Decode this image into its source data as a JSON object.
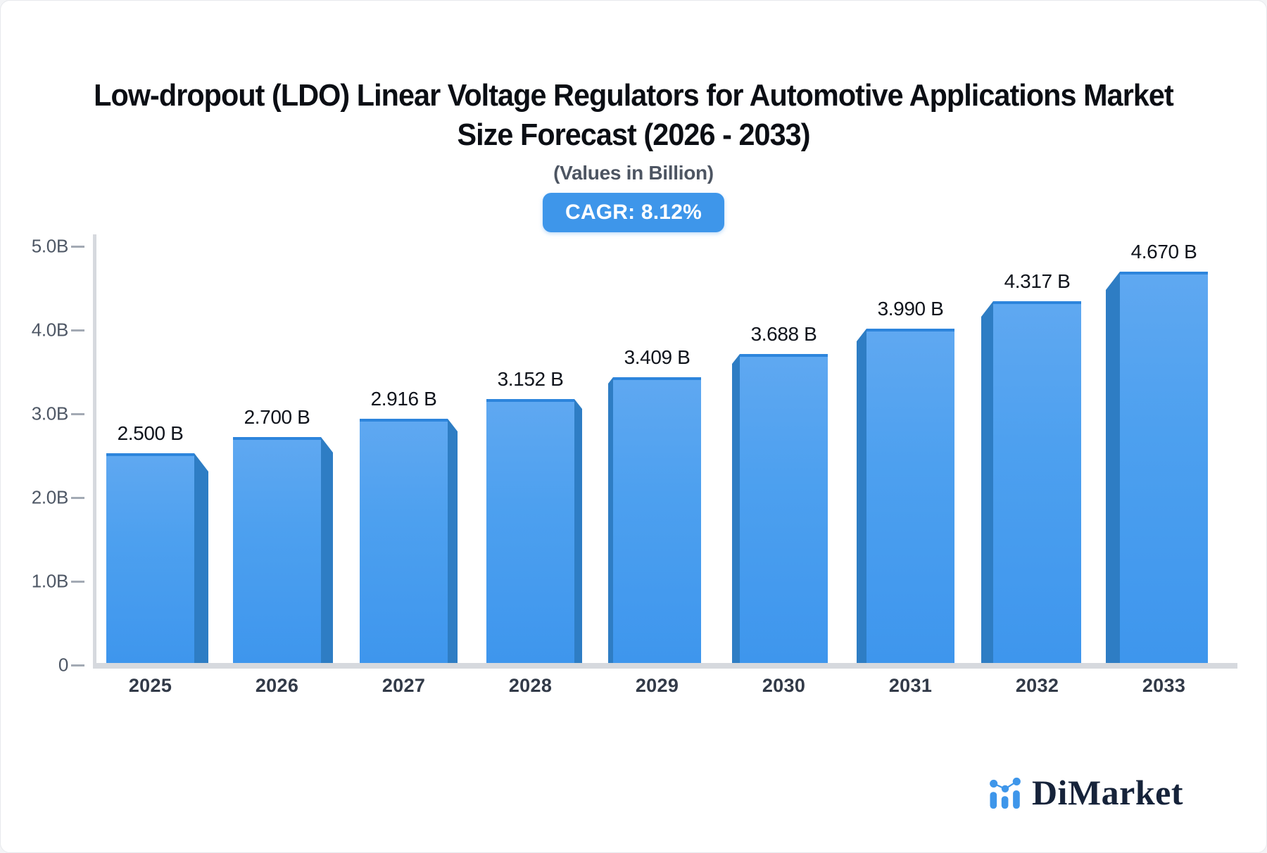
{
  "header": {
    "title_line1": "Low-dropout (LDO) Linear Voltage Regulators for Automotive Applications Market",
    "title_line2": "Size Forecast (2026 - 2033)",
    "subtitle": "(Values in Billion)",
    "cagr_label": "CAGR: 8.12%"
  },
  "chart_data": {
    "type": "bar",
    "title": "Low-dropout (LDO) Linear Voltage Regulators for Automotive Applications Market Size Forecast (2026 - 2033)",
    "subtitle": "(Values in Billion)",
    "cagr": "8.12%",
    "categories": [
      "2025",
      "2026",
      "2027",
      "2028",
      "2029",
      "2030",
      "2031",
      "2032",
      "2033"
    ],
    "values": [
      2.5,
      2.7,
      2.916,
      3.152,
      3.409,
      3.688,
      3.99,
      4.317,
      4.67
    ],
    "value_labels": [
      "2.500 B",
      "2.700 B",
      "2.916 B",
      "3.152 B",
      "3.409 B",
      "3.688 B",
      "3.990 B",
      "4.317 B",
      "4.670 B"
    ],
    "ytick_labels": [
      "5.0B",
      "4.0B",
      "3.0B",
      "2.0B",
      "1.0B",
      "0"
    ],
    "ytick_values": [
      5.0,
      4.0,
      3.0,
      2.0,
      1.0,
      0
    ],
    "xlabel": "",
    "ylabel": "",
    "ylim": [
      0,
      5
    ],
    "grid": false,
    "legend": false,
    "bar_style": "3d-perspective"
  },
  "colors": {
    "bar_face_top": "#5fa8f1",
    "bar_face_bottom": "#3e96ed",
    "bar_top_edge": "#2d85dc",
    "bar_side": "#2e7dc4",
    "badge_bg": "#3e96ea",
    "axis_gray": "#d6d9de",
    "brand_navy": "#16233a",
    "brand_blue": "#3e96ea"
  },
  "footer": {
    "brand": "DiMarket",
    "brand_icon": "bar-chart-logo-icon"
  }
}
